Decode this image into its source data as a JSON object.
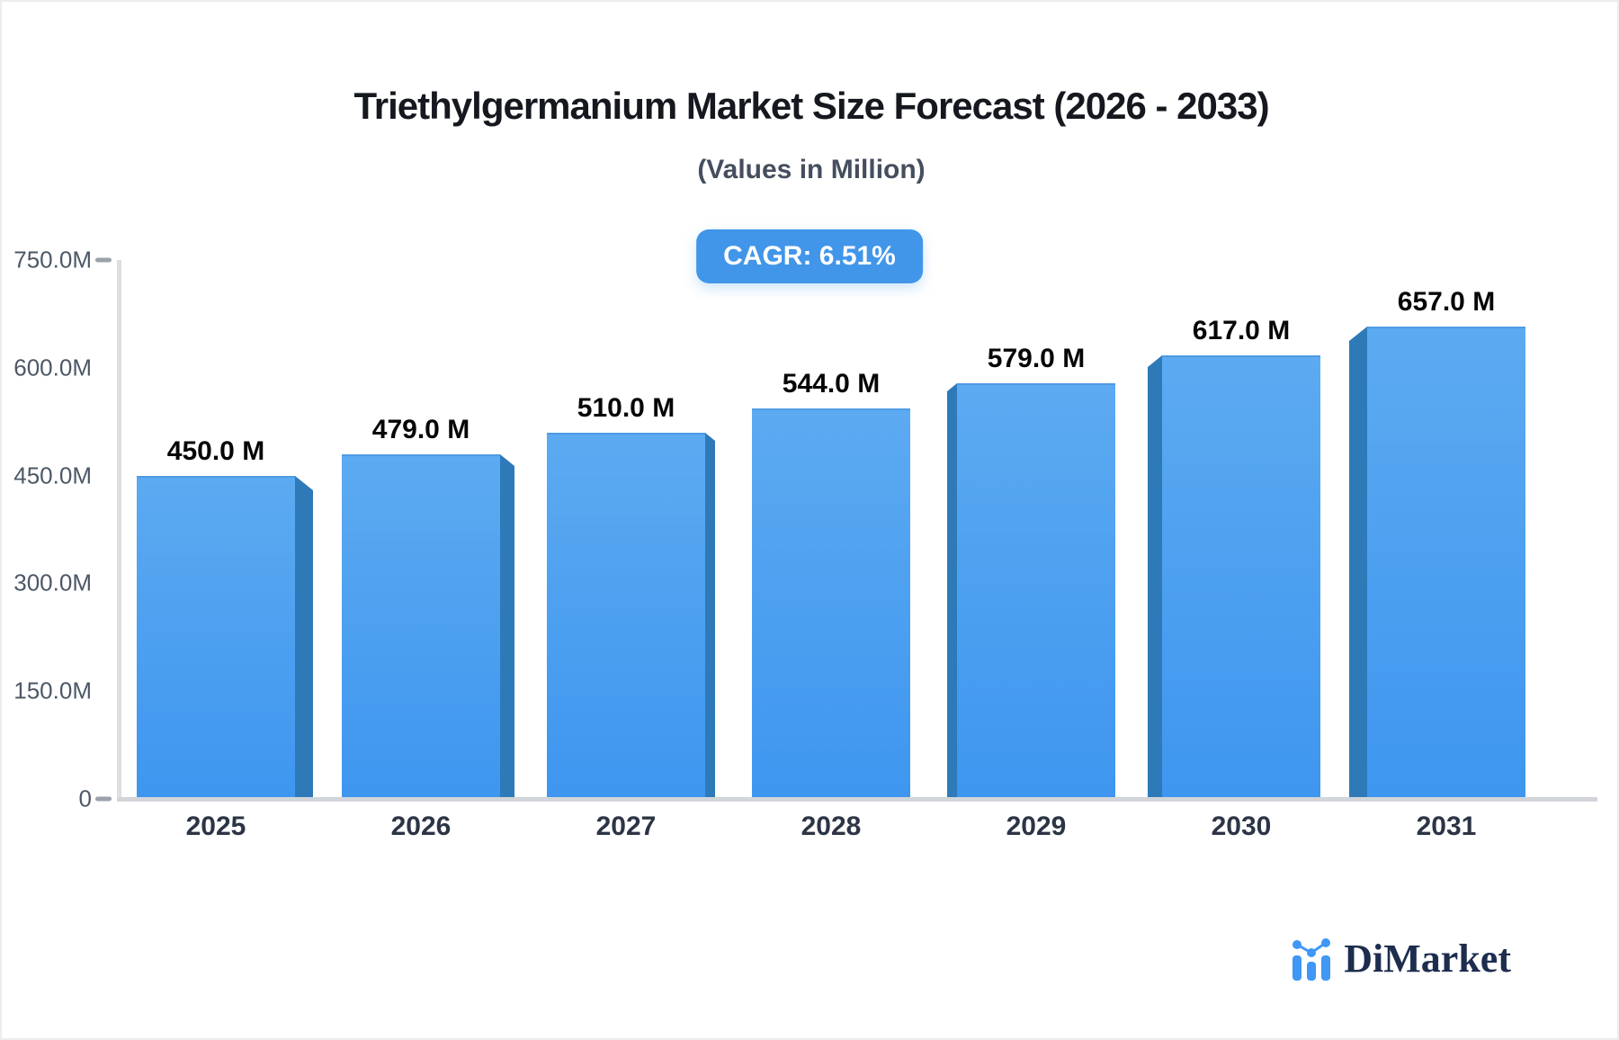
{
  "header": {
    "title": "Triethylgermanium Market Size Forecast (2026 - 2033)",
    "subtitle": "(Values in Million)",
    "badge_label": "CAGR: 6.51%"
  },
  "chart_data": {
    "type": "bar",
    "title": "Triethylgermanium Market Size Forecast (2026 - 2033)",
    "subtitle": "(Values in Million)",
    "cagr": "6.51%",
    "categories": [
      "2025",
      "2026",
      "2027",
      "2028",
      "2029",
      "2030",
      "2031"
    ],
    "values": [
      450,
      479,
      510,
      544,
      579,
      617,
      657
    ],
    "value_labels": [
      "450.0 M",
      "479.0 M",
      "510.0 M",
      "544.0 M",
      "579.0 M",
      "617.0 M",
      "657.0 M"
    ],
    "unit": "Million",
    "ylim": [
      0,
      750
    ],
    "y_ticks": [
      {
        "label": "750.0M",
        "value": 750,
        "dash": true
      },
      {
        "label": "600.0M",
        "value": 600,
        "dash": false
      },
      {
        "label": "450.0M",
        "value": 450,
        "dash": false
      },
      {
        "label": "300.0M",
        "value": 300,
        "dash": false
      },
      {
        "label": "150.0M",
        "value": 150,
        "dash": false
      },
      {
        "label": "0",
        "value": 0,
        "dash": true
      }
    ],
    "legend": "none",
    "grid": "off",
    "bar_color_top": "#5CAAF1",
    "bar_color_bottom": "#3E96EF",
    "bar_side_color": "#2E7AB8",
    "badge_color": "#4196E9"
  },
  "footer": {
    "logo_text": "DiMarket",
    "logo_icon": "bar-chart-trend-icon",
    "logo_blue": "#3F97F6",
    "logo_navy": "#1D2D4E"
  }
}
